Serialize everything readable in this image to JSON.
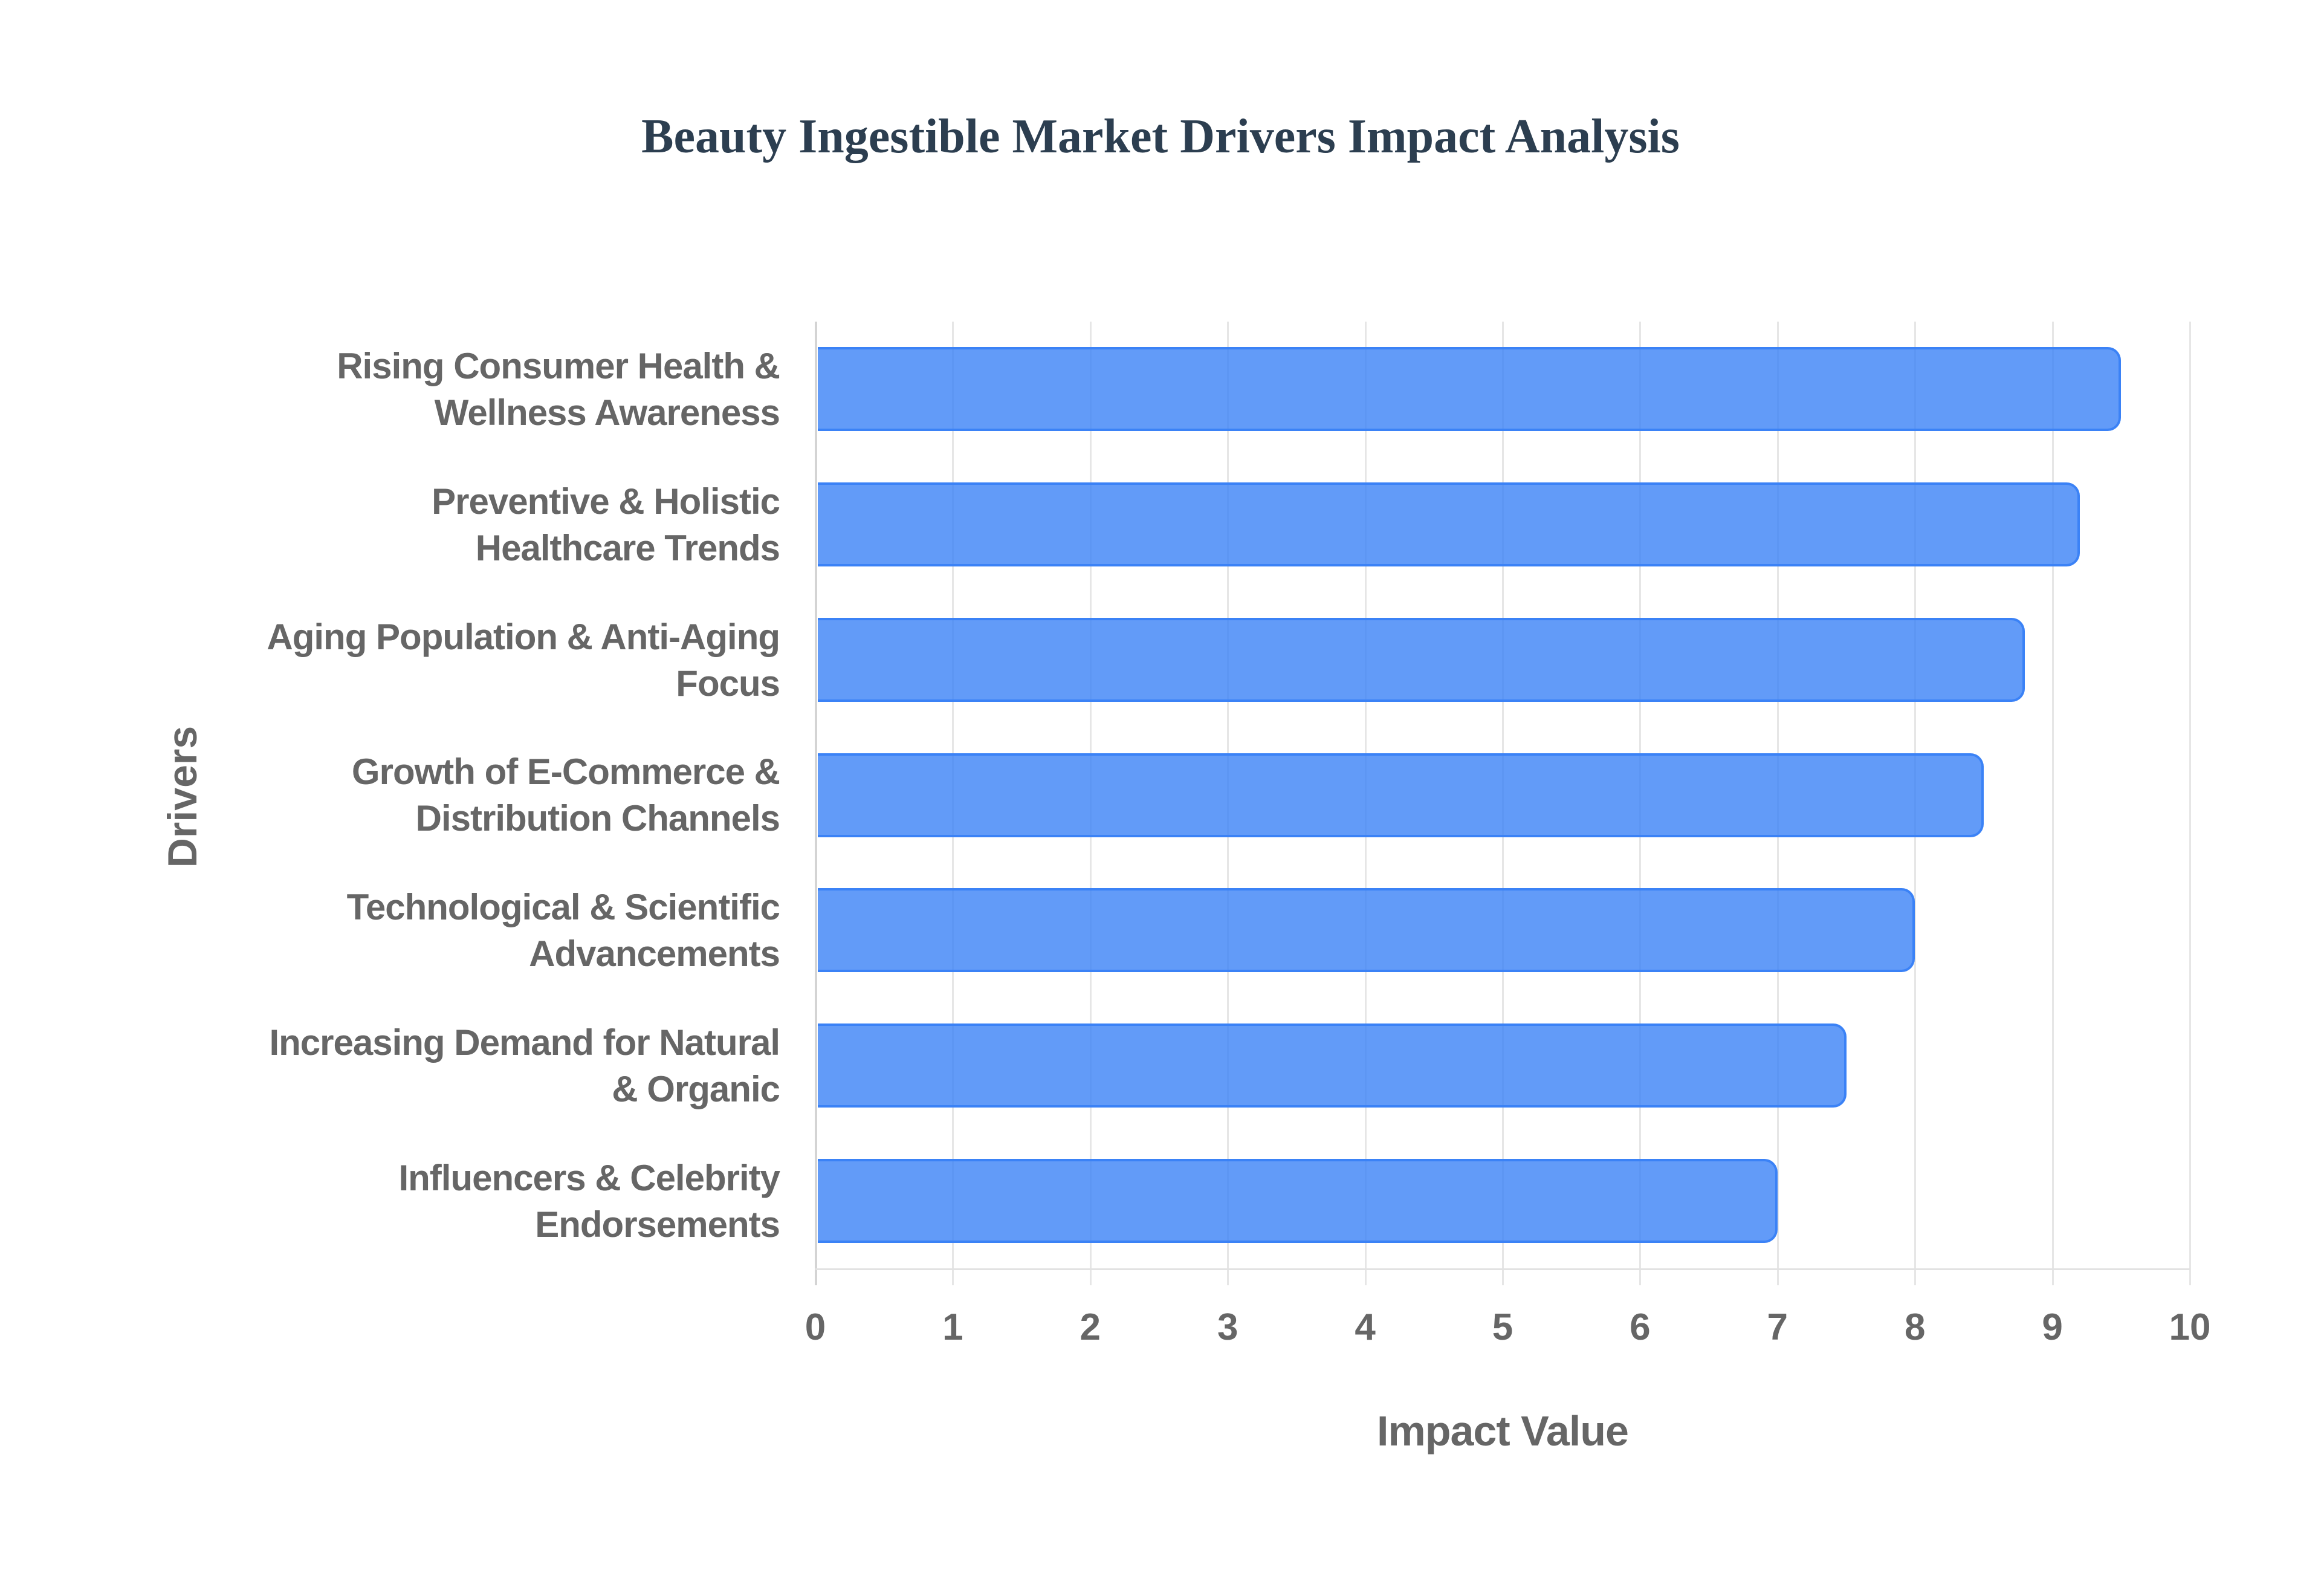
{
  "title": "Beauty Ingestible Market Drivers Impact Analysis",
  "colors": {
    "title": "#2c3e50",
    "bar_fill": "rgba(59, 130, 246, 0.8)",
    "bar_border": "#3b82f6",
    "axis_text": "#666666",
    "gridline": "#e6e6e6"
  },
  "axes": {
    "x_title": "Impact Value",
    "y_title": "Drivers",
    "x_ticks": [
      "0",
      "1",
      "2",
      "3",
      "4",
      "5",
      "6",
      "7",
      "8",
      "9",
      "10"
    ]
  },
  "drivers": [
    {
      "label": "Rising Consumer Health &\nWellness Awareness",
      "value": 9.5
    },
    {
      "label": "Preventive & Holistic\nHealthcare Trends",
      "value": 9.2
    },
    {
      "label": "Aging Population & Anti-Aging\nFocus",
      "value": 8.8
    },
    {
      "label": "Growth of E-Commerce &\nDistribution Channels",
      "value": 8.5
    },
    {
      "label": "Technological & Scientific\nAdvancements",
      "value": 8.0
    },
    {
      "label": "Increasing Demand for Natural\n& Organic",
      "value": 7.5
    },
    {
      "label": "Influencers & Celebrity\nEndorsements",
      "value": 7.0
    }
  ],
  "chart_data": {
    "type": "bar",
    "orientation": "horizontal",
    "title": "Beauty Ingestible Market Drivers Impact Analysis",
    "xlabel": "Impact Value",
    "ylabel": "Drivers",
    "categories": [
      "Rising Consumer Health & Wellness Awareness",
      "Preventive & Holistic Healthcare Trends",
      "Aging Population & Anti-Aging Focus",
      "Growth of E-Commerce & Distribution Channels",
      "Technological & Scientific Advancements",
      "Increasing Demand for Natural & Organic",
      "Influencers & Celebrity Endorsements"
    ],
    "values": [
      9.5,
      9.2,
      8.8,
      8.5,
      8.0,
      7.5,
      7.0
    ],
    "xlim": [
      0,
      10
    ],
    "x_ticks": [
      0,
      1,
      2,
      3,
      4,
      5,
      6,
      7,
      8,
      9,
      10
    ],
    "grid": true,
    "legend": null,
    "bar_color": "#3b82f6"
  }
}
